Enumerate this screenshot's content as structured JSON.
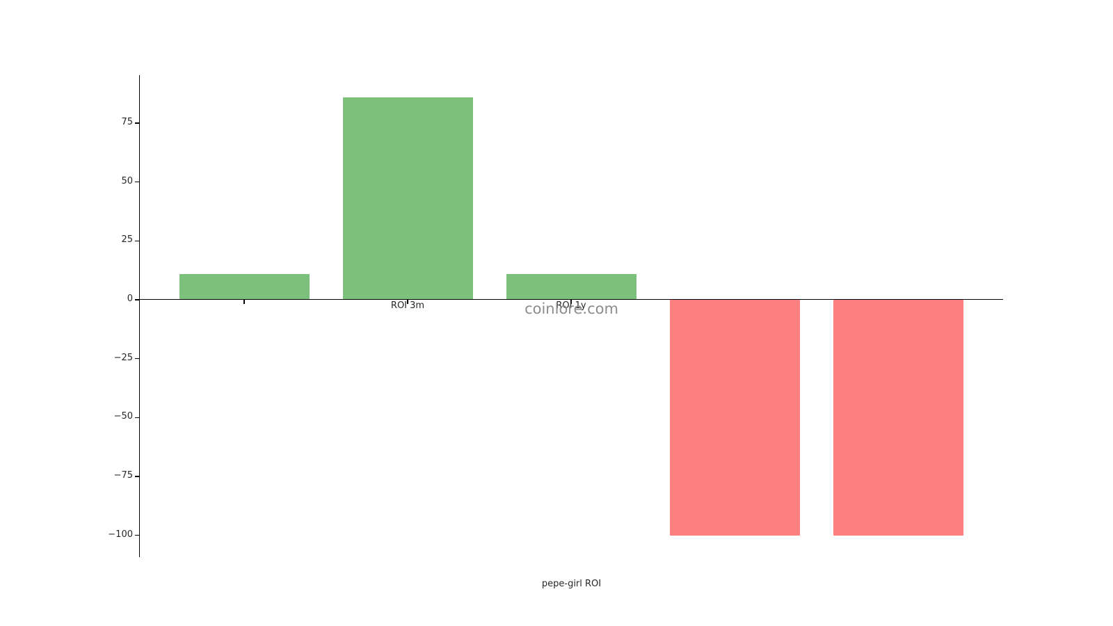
{
  "watermark": "coinlore.com",
  "chart_data": {
    "type": "bar",
    "title": "",
    "xlabel": "pepe-girl ROI",
    "ylabel": "",
    "categories": [
      "",
      "ROI 3m",
      "ROI 1y",
      "",
      ""
    ],
    "values": [
      11,
      86,
      11,
      -100,
      -100
    ],
    "ylim": [
      -109.5,
      95.5
    ],
    "yticks": [
      {
        "value": 75,
        "label": "75"
      },
      {
        "value": 50,
        "label": "50"
      },
      {
        "value": 25,
        "label": "25"
      },
      {
        "value": 0,
        "label": "0"
      },
      {
        "value": -25,
        "label": "−25"
      },
      {
        "value": -50,
        "label": "−50"
      },
      {
        "value": -75,
        "label": "−75"
      },
      {
        "value": -100,
        "label": "−100"
      }
    ],
    "grid": false,
    "legend": "none",
    "colors": {
      "positive": "#7cc07c",
      "negative": "#ff8080",
      "axis": "#000000",
      "tick_label": "#262626",
      "watermark": "#8c8c8c"
    }
  }
}
